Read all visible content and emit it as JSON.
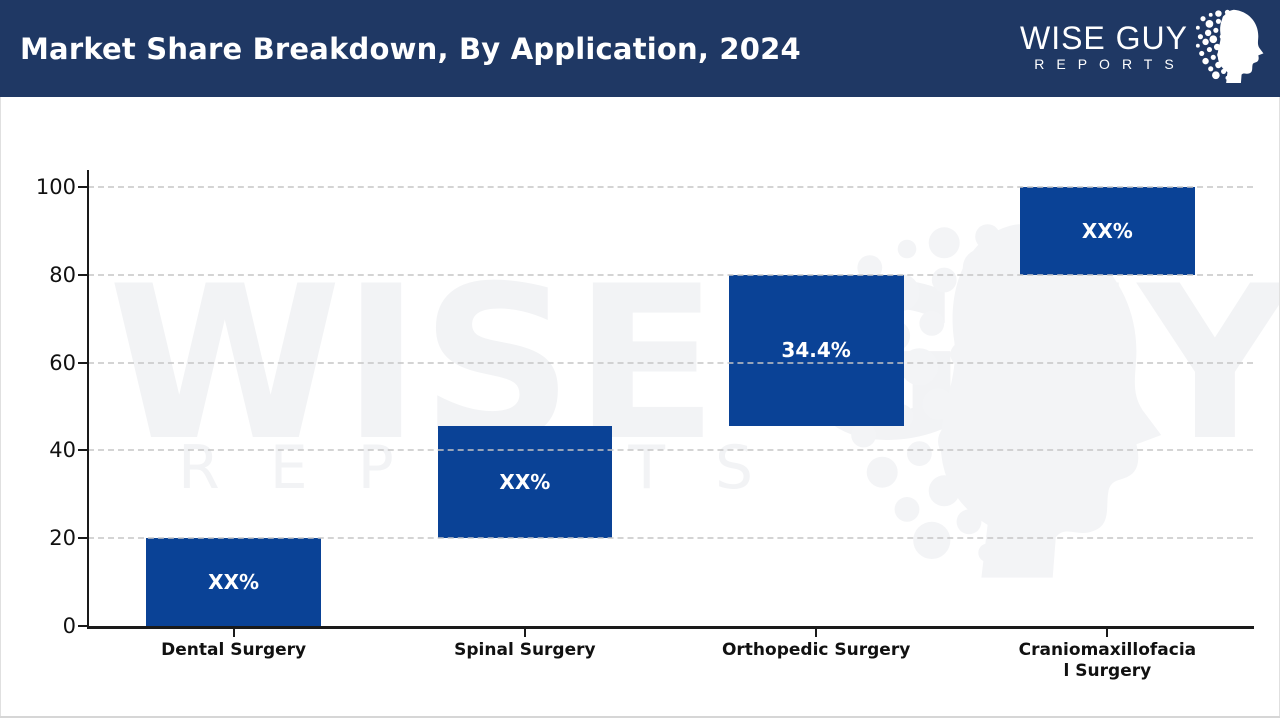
{
  "header": {
    "title": "Market Share Breakdown, By Application, 2024",
    "logo": {
      "line1": "WISE GUY",
      "line2": "REPORTS"
    }
  },
  "watermark": {
    "line1": "WISE GUY",
    "line2": "REPORTS"
  },
  "colors": {
    "header_bg": "#1f3864",
    "bar_blue": "#0a4296",
    "bar_label": "#ffffff",
    "grid": "#c6c6c6",
    "axis": "#1a1a1a",
    "watermark": "#f2f3f5"
  },
  "chart_data": {
    "type": "bar",
    "variant": "waterfall",
    "title": "Market Share Breakdown, By Application, 2024",
    "categories": [
      "Dental Surgery",
      "Spinal Surgery",
      "Orthopedic Surgery",
      "Craniomaxillofacial Surgery"
    ],
    "category_tick_lines": [
      [
        "Dental Surgery"
      ],
      [
        "Spinal Surgery"
      ],
      [
        "Orthopedic Surgery"
      ],
      [
        "Craniomaxillofacia",
        "l Surgery"
      ]
    ],
    "bars": [
      {
        "category": "Dental Surgery",
        "start": 0,
        "end": 20,
        "value": 20,
        "value_label": "XX%"
      },
      {
        "category": "Spinal Surgery",
        "start": 20,
        "end": 45.6,
        "value": 25.6,
        "value_label": "XX%"
      },
      {
        "category": "Orthopedic Surgery",
        "start": 45.6,
        "end": 80,
        "value": 34.4,
        "value_label": "34.4%"
      },
      {
        "category": "Craniomaxillofacial Surgery",
        "start": 80,
        "end": 100,
        "value": 20,
        "value_label": "XX%"
      }
    ],
    "yticks": [
      0,
      20,
      40,
      60,
      80,
      100
    ],
    "ylim": [
      0,
      100
    ],
    "xlabel": "",
    "ylabel": "",
    "legend": null,
    "grid": {
      "axis": "y",
      "style": "dashed",
      "on": true
    },
    "bar_color": "#0a4296",
    "bar_label_color": "#ffffff"
  }
}
